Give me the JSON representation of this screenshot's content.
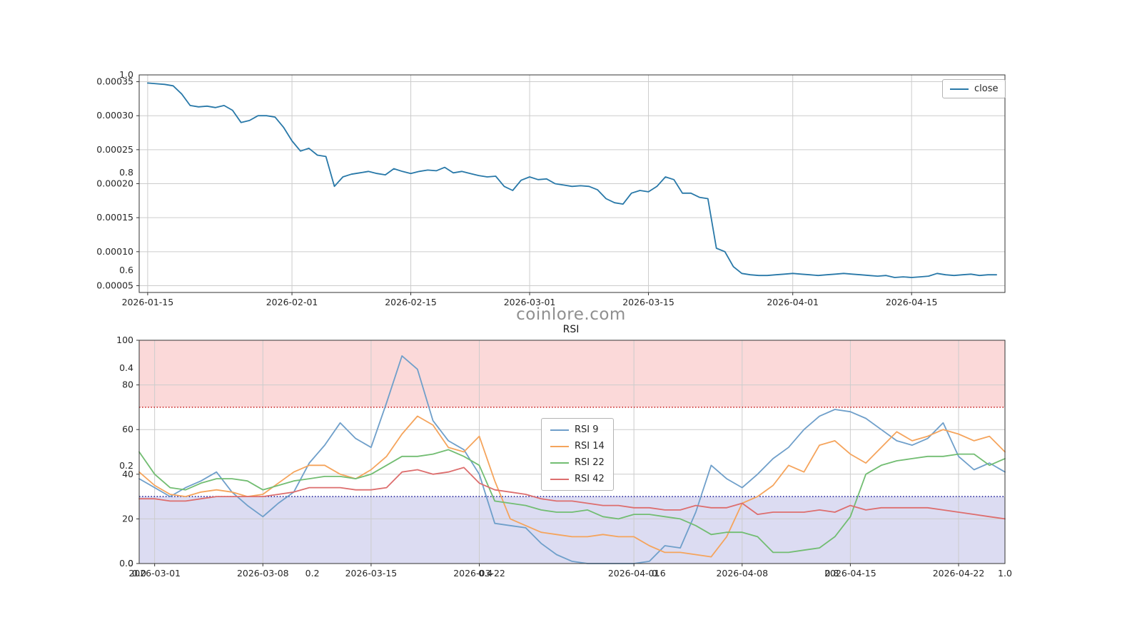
{
  "watermark": "coinlore.com",
  "hidden_axis": {
    "x_ticks": [
      "0.0",
      "0.2",
      "0.4",
      "0.6",
      "0.8",
      "1.0"
    ],
    "y_ticks": [
      "1.0",
      "0.8",
      "0.6",
      "0.4",
      "0.2",
      "0.0"
    ]
  },
  "chart_data": [
    {
      "type": "line",
      "title": "",
      "xlabel": "",
      "ylabel": "",
      "legend_position": "upper right",
      "grid": true,
      "xlim": [
        "2026-01-14",
        "2026-04-26"
      ],
      "ylim": [
        4e-05,
        0.00036
      ],
      "x_ticks": [
        {
          "d": "2026-01-15",
          "label": "2026-01-15"
        },
        {
          "d": "2026-02-01",
          "label": "2026-02-01"
        },
        {
          "d": "2026-02-15",
          "label": "2026-02-15"
        },
        {
          "d": "2026-03-01",
          "label": "2026-03-01"
        },
        {
          "d": "2026-03-15",
          "label": "2026-03-15"
        },
        {
          "d": "2026-04-01",
          "label": "2026-04-01"
        },
        {
          "d": "2026-04-15",
          "label": "2026-04-15"
        }
      ],
      "y_ticks": [
        {
          "v": 5e-05,
          "label": "0.00005"
        },
        {
          "v": 0.0001,
          "label": "0.00010"
        },
        {
          "v": 0.00015,
          "label": "0.00015"
        },
        {
          "v": 0.0002,
          "label": "0.00020"
        },
        {
          "v": 0.00025,
          "label": "0.00025"
        },
        {
          "v": 0.0003,
          "label": "0.00030"
        },
        {
          "v": 0.00035,
          "label": "0.00035"
        }
      ],
      "x_dates": [
        "2026-01-15",
        "2026-01-16",
        "2026-01-17",
        "2026-01-18",
        "2026-01-19",
        "2026-01-20",
        "2026-01-21",
        "2026-01-22",
        "2026-01-23",
        "2026-01-24",
        "2026-01-25",
        "2026-01-26",
        "2026-01-27",
        "2026-01-28",
        "2026-01-29",
        "2026-01-30",
        "2026-01-31",
        "2026-02-01",
        "2026-02-02",
        "2026-02-03",
        "2026-02-04",
        "2026-02-05",
        "2026-02-06",
        "2026-02-07",
        "2026-02-08",
        "2026-02-09",
        "2026-02-10",
        "2026-02-11",
        "2026-02-12",
        "2026-02-13",
        "2026-02-14",
        "2026-02-15",
        "2026-02-16",
        "2026-02-17",
        "2026-02-18",
        "2026-02-19",
        "2026-02-20",
        "2026-02-21",
        "2026-02-22",
        "2026-02-23",
        "2026-02-24",
        "2026-02-25",
        "2026-02-26",
        "2026-02-27",
        "2026-02-28",
        "2026-03-01",
        "2026-03-02",
        "2026-03-03",
        "2026-03-04",
        "2026-03-05",
        "2026-03-06",
        "2026-03-07",
        "2026-03-08",
        "2026-03-09",
        "2026-03-10",
        "2026-03-11",
        "2026-03-12",
        "2026-03-13",
        "2026-03-14",
        "2026-03-15",
        "2026-03-16",
        "2026-03-17",
        "2026-03-18",
        "2026-03-19",
        "2026-03-20",
        "2026-03-21",
        "2026-03-22",
        "2026-03-23",
        "2026-03-24",
        "2026-03-25",
        "2026-03-26",
        "2026-03-27",
        "2026-03-28",
        "2026-03-29",
        "2026-03-30",
        "2026-03-31",
        "2026-04-01",
        "2026-04-02",
        "2026-04-03",
        "2026-04-04",
        "2026-04-05",
        "2026-04-06",
        "2026-04-07",
        "2026-04-08",
        "2026-04-09",
        "2026-04-10",
        "2026-04-11",
        "2026-04-12",
        "2026-04-13",
        "2026-04-14",
        "2026-04-15",
        "2026-04-16",
        "2026-04-17",
        "2026-04-18",
        "2026-04-19",
        "2026-04-20",
        "2026-04-21",
        "2026-04-22",
        "2026-04-23",
        "2026-04-24",
        "2026-04-25"
      ],
      "series": [
        {
          "name": "close",
          "color": "#2878a8",
          "values": [
            0.000348,
            0.000347,
            0.000346,
            0.000344,
            0.000332,
            0.000315,
            0.000313,
            0.000314,
            0.000312,
            0.000315,
            0.000308,
            0.00029,
            0.000293,
            0.0003,
            0.0003,
            0.000298,
            0.000283,
            0.000263,
            0.000248,
            0.000252,
            0.000242,
            0.00024,
            0.000196,
            0.00021,
            0.000214,
            0.000216,
            0.000218,
            0.000215,
            0.000213,
            0.000222,
            0.000218,
            0.000215,
            0.000218,
            0.00022,
            0.000219,
            0.000224,
            0.000216,
            0.000218,
            0.000215,
            0.000212,
            0.00021,
            0.000211,
            0.000196,
            0.00019,
            0.000205,
            0.00021,
            0.000206,
            0.000207,
            0.0002,
            0.000198,
            0.000196,
            0.000197,
            0.000196,
            0.000191,
            0.000178,
            0.000172,
            0.00017,
            0.000186,
            0.00019,
            0.000188,
            0.000196,
            0.00021,
            0.000206,
            0.000186,
            0.000186,
            0.00018,
            0.000178,
            0.000105,
            0.0001,
            7.8e-05,
            6.8e-05,
            6.6e-05,
            6.5e-05,
            6.5e-05,
            6.6e-05,
            6.7e-05,
            6.8e-05,
            6.7e-05,
            6.6e-05,
            6.5e-05,
            6.6e-05,
            6.7e-05,
            6.8e-05,
            6.7e-05,
            6.6e-05,
            6.5e-05,
            6.4e-05,
            6.5e-05,
            6.2e-05,
            6.3e-05,
            6.2e-05,
            6.3e-05,
            6.4e-05,
            6.8e-05,
            6.6e-05,
            6.5e-05,
            6.6e-05,
            6.7e-05,
            6.5e-05,
            6.6e-05,
            6.6e-05
          ]
        }
      ]
    },
    {
      "type": "line",
      "title": "RSI",
      "xlabel": "",
      "ylabel": "",
      "legend_position": "center",
      "grid": true,
      "xlim": [
        "2026-02-28",
        "2026-04-25"
      ],
      "ylim": [
        0,
        100
      ],
      "bands": [
        {
          "name": "overbought-band",
          "from": 70,
          "to": 100,
          "color": "#fbd9d9"
        },
        {
          "name": "oversold-band",
          "from": 0,
          "to": 30,
          "color": "#dcdcf2"
        }
      ],
      "hlines": [
        {
          "y": 70,
          "color": "#c00000"
        },
        {
          "y": 30,
          "color": "#00008b"
        }
      ],
      "x_ticks": [
        {
          "d": "2026-03-01",
          "label": "2026-03-01"
        },
        {
          "d": "2026-03-08",
          "label": "2026-03-08"
        },
        {
          "d": "2026-03-15",
          "label": "2026-03-15"
        },
        {
          "d": "2026-03-22",
          "label": "2026-03-22"
        },
        {
          "d": "2026-04-01",
          "label": "2026-04-01"
        },
        {
          "d": "2026-04-08",
          "label": "2026-04-08"
        },
        {
          "d": "2026-04-15",
          "label": "2026-04-15"
        },
        {
          "d": "2026-04-22",
          "label": "2026-04-22"
        }
      ],
      "y_ticks": [
        {
          "v": 0,
          "label": "0"
        },
        {
          "v": 20,
          "label": "20"
        },
        {
          "v": 40,
          "label": "40"
        },
        {
          "v": 60,
          "label": "60"
        },
        {
          "v": 80,
          "label": "80"
        },
        {
          "v": 100,
          "label": "100"
        }
      ],
      "x_dates": [
        "2026-02-28",
        "2026-03-01",
        "2026-03-02",
        "2026-03-03",
        "2026-03-04",
        "2026-03-05",
        "2026-03-06",
        "2026-03-07",
        "2026-03-08",
        "2026-03-09",
        "2026-03-10",
        "2026-03-11",
        "2026-03-12",
        "2026-03-13",
        "2026-03-14",
        "2026-03-15",
        "2026-03-16",
        "2026-03-17",
        "2026-03-18",
        "2026-03-19",
        "2026-03-20",
        "2026-03-21",
        "2026-03-22",
        "2026-03-23",
        "2026-03-24",
        "2026-03-25",
        "2026-03-26",
        "2026-03-27",
        "2026-03-28",
        "2026-03-29",
        "2026-03-30",
        "2026-03-31",
        "2026-04-01",
        "2026-04-02",
        "2026-04-03",
        "2026-04-04",
        "2026-04-05",
        "2026-04-06",
        "2026-04-07",
        "2026-04-08",
        "2026-04-09",
        "2026-04-10",
        "2026-04-11",
        "2026-04-12",
        "2026-04-13",
        "2026-04-14",
        "2026-04-15",
        "2026-04-16",
        "2026-04-17",
        "2026-04-18",
        "2026-04-19",
        "2026-04-20",
        "2026-04-21",
        "2026-04-22",
        "2026-04-23",
        "2026-04-24",
        "2026-04-25"
      ],
      "series": [
        {
          "name": "RSI 9",
          "color": "#6f9fca",
          "values": [
            38,
            34,
            30,
            34,
            37,
            41,
            32,
            26,
            21,
            27,
            32,
            45,
            53,
            63,
            56,
            52,
            72,
            93,
            87,
            64,
            55,
            51,
            40,
            18,
            17,
            16,
            9,
            4,
            1,
            0,
            0,
            0,
            0,
            1,
            8,
            7,
            23,
            44,
            38,
            34,
            40,
            47,
            52,
            60,
            66,
            69,
            68,
            65,
            60,
            55,
            53,
            56,
            63,
            48,
            42,
            45,
            41
          ]
        },
        {
          "name": "RSI 14",
          "color": "#f5a45c",
          "values": [
            41,
            35,
            31,
            30,
            32,
            33,
            32,
            30,
            31,
            36,
            41,
            44,
            44,
            40,
            38,
            42,
            48,
            58,
            66,
            62,
            52,
            50,
            57,
            37,
            20,
            17,
            14,
            13,
            12,
            12,
            13,
            12,
            12,
            8,
            5,
            5,
            4,
            3,
            12,
            27,
            30,
            35,
            44,
            41,
            53,
            55,
            49,
            45,
            52,
            59,
            55,
            57,
            60,
            58,
            55,
            57,
            50
          ]
        },
        {
          "name": "RSI 22",
          "color": "#72bd72",
          "values": [
            50,
            40,
            34,
            33,
            36,
            38,
            38,
            37,
            33,
            35,
            37,
            38,
            39,
            39,
            38,
            40,
            44,
            48,
            48,
            49,
            51,
            48,
            44,
            28,
            27,
            26,
            24,
            23,
            23,
            24,
            21,
            20,
            22,
            22,
            21,
            20,
            17,
            13,
            14,
            14,
            12,
            5,
            5,
            6,
            7,
            12,
            21,
            40,
            44,
            46,
            47,
            48,
            48,
            49,
            49,
            44,
            47
          ]
        },
        {
          "name": "RSI 42",
          "color": "#dd6e6e",
          "values": [
            29,
            29,
            28,
            28,
            29,
            30,
            30,
            30,
            30,
            31,
            32,
            34,
            34,
            34,
            33,
            33,
            34,
            41,
            42,
            40,
            41,
            43,
            36,
            33,
            32,
            31,
            29,
            28,
            28,
            27,
            26,
            26,
            25,
            25,
            24,
            24,
            26,
            25,
            25,
            27,
            22,
            23,
            23,
            23,
            24,
            23,
            26,
            24,
            25,
            25,
            25,
            25,
            24,
            23,
            22,
            21,
            20
          ]
        }
      ]
    }
  ]
}
